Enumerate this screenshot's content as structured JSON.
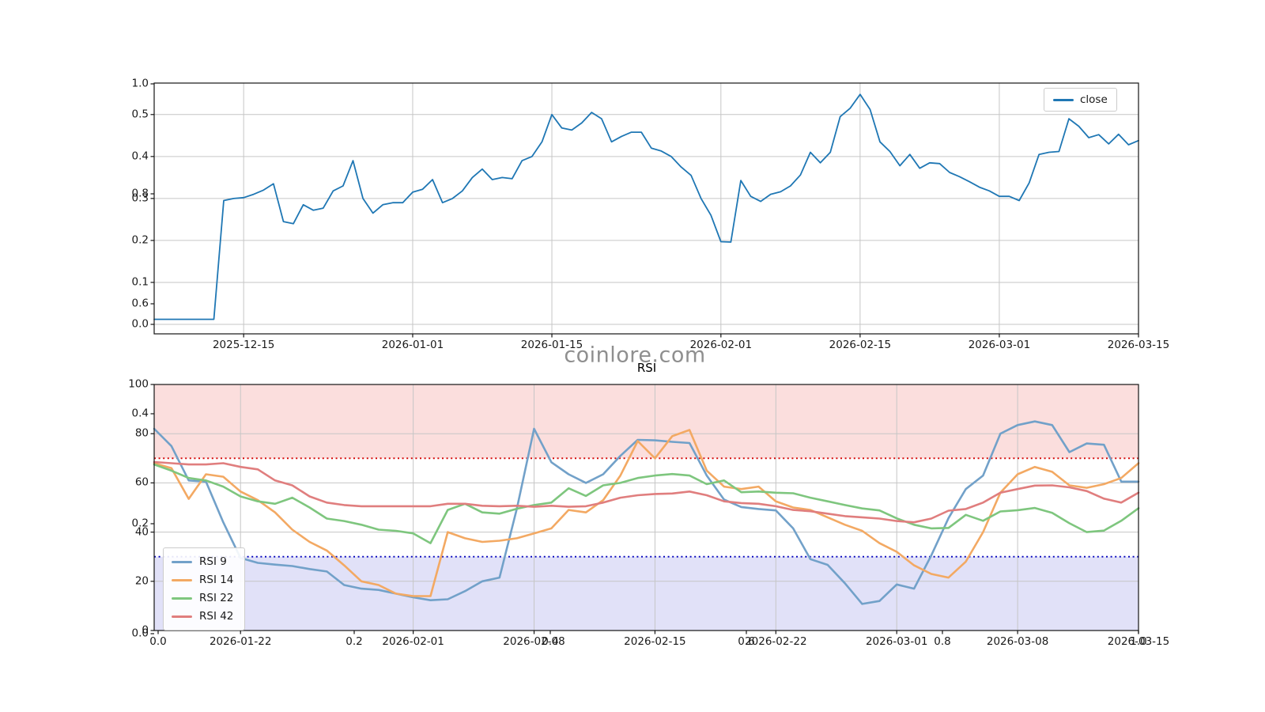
{
  "watermark": "coinlore.com",
  "overlay_axis": {
    "xticks": [
      "0.0",
      "0.2",
      "0.4",
      "0.6",
      "0.8",
      "1.0"
    ],
    "yticks": [
      "1.0",
      "0.8",
      "0.6",
      "0.4",
      "0.2",
      "0.0"
    ]
  },
  "chart_data": [
    {
      "type": "line",
      "title": "",
      "x_start": "2025-12-06",
      "x_end": "2026-03-15",
      "x_freq": "daily",
      "xticks": [
        "2025-12-15",
        "2026-01-01",
        "2026-01-15",
        "2026-02-01",
        "2026-02-15",
        "2026-03-01",
        "2026-03-15"
      ],
      "yticks": [
        "0.0",
        "0.1",
        "0.2",
        "0.3",
        "0.4",
        "0.5"
      ],
      "ylim": [
        -0.0226,
        0.575
      ],
      "grid": true,
      "legend_position": "upper right",
      "series": [
        {
          "name": "close",
          "color": "#1f77b4",
          "values": [
            0.012,
            0.012,
            0.012,
            0.012,
            0.012,
            0.012,
            0.012,
            0.295,
            0.3,
            0.302,
            0.31,
            0.32,
            0.335,
            0.245,
            0.24,
            0.285,
            0.272,
            0.277,
            0.318,
            0.33,
            0.39,
            0.3,
            0.265,
            0.285,
            0.29,
            0.29,
            0.315,
            0.322,
            0.345,
            0.29,
            0.3,
            0.318,
            0.35,
            0.37,
            0.345,
            0.35,
            0.347,
            0.39,
            0.4,
            0.435,
            0.5,
            0.468,
            0.463,
            0.48,
            0.505,
            0.49,
            0.435,
            0.448,
            0.458,
            0.458,
            0.42,
            0.413,
            0.4,
            0.375,
            0.355,
            0.3,
            0.26,
            0.197,
            0.196,
            0.343,
            0.305,
            0.293,
            0.31,
            0.316,
            0.33,
            0.356,
            0.41,
            0.385,
            0.41,
            0.495,
            0.515,
            0.548,
            0.512,
            0.435,
            0.412,
            0.378,
            0.405,
            0.372,
            0.385,
            0.383,
            0.362,
            0.352,
            0.34,
            0.327,
            0.318,
            0.305,
            0.305,
            0.295,
            0.337,
            0.405,
            0.41,
            0.412,
            0.49,
            0.472,
            0.445,
            0.452,
            0.43,
            0.453,
            0.428,
            0.438
          ]
        }
      ]
    },
    {
      "type": "line",
      "title": "RSI",
      "x_start": "2026-01-17",
      "x_end": "2026-03-15",
      "x_freq": "daily",
      "xticks": [
        "2026-01-22",
        "2026-02-01",
        "2026-02-08",
        "2026-02-15",
        "2026-02-22",
        "2026-03-01",
        "2026-03-08",
        "2026-03-15"
      ],
      "yticks": [
        "0",
        "20",
        "40",
        "60",
        "80",
        "100"
      ],
      "ylim": [
        0,
        100
      ],
      "grid": true,
      "legend_position": "lower left",
      "bands": [
        {
          "from": 70,
          "to": 100,
          "color": "#fbdedd",
          "meaning": "overbought"
        },
        {
          "from": 0,
          "to": 30,
          "color": "#e1e1f8",
          "meaning": "oversold"
        }
      ],
      "hlines": [
        {
          "y": 70,
          "color": "#d40000",
          "style": "dotted"
        },
        {
          "y": 30,
          "color": "#0000bb",
          "style": "dotted"
        }
      ],
      "series": [
        {
          "name": "RSI 9",
          "color": "#72a1c9",
          "values": [
            82,
            75,
            61,
            60.5,
            44,
            29.5,
            27.5,
            26.8,
            26.2,
            25,
            24,
            18.5,
            17,
            16.5,
            15,
            13.5,
            12.3,
            12.7,
            16,
            20,
            21.5,
            49.5,
            82,
            68.4,
            63.5,
            60,
            63.5,
            71,
            77.5,
            77.3,
            76.7,
            76.2,
            63,
            53.2,
            50.2,
            49.4,
            48.8,
            41.5,
            29,
            26.7,
            19.2,
            10.8,
            12,
            18.7,
            17,
            30.5,
            45.7,
            57.5,
            63,
            80,
            83.5,
            85,
            83.5,
            72.5,
            76,
            75.5,
            60.5,
            60.5
          ]
        },
        {
          "name": "RSI 14",
          "color": "#f3a963",
          "values": [
            68,
            66,
            53.5,
            63.5,
            62.5,
            56.5,
            53,
            48,
            41,
            36,
            32.5,
            26.5,
            20,
            18.5,
            15,
            14,
            14,
            40,
            37.5,
            36,
            36.5,
            37.5,
            39.5,
            41.5,
            49,
            48,
            53,
            63,
            77,
            70,
            79,
            81.5,
            65,
            58.5,
            57.5,
            58.5,
            52.5,
            50,
            49,
            46,
            43,
            40.5,
            35.5,
            32,
            26.5,
            23,
            21.5,
            28,
            40,
            56,
            63.5,
            66.5,
            64.5,
            59,
            58,
            59.5,
            62,
            68
          ]
        },
        {
          "name": "RSI 22",
          "color": "#7ec67e",
          "values": [
            67.5,
            65,
            62,
            61,
            58.5,
            54.5,
            52.5,
            51.5,
            54,
            50,
            45.5,
            44.5,
            43,
            41,
            40.5,
            39.5,
            35.5,
            49,
            51.5,
            48,
            47.5,
            49.5,
            51,
            52,
            57.8,
            54.7,
            59,
            60,
            62,
            63,
            63.6,
            63,
            59.5,
            61,
            56.2,
            56.5,
            56,
            55.8,
            54,
            52.5,
            51,
            49.6,
            48.8,
            45.6,
            43,
            41.5,
            41.7,
            47,
            44.6,
            48.4,
            48.9,
            49.8,
            47.8,
            43.6,
            40,
            40.6,
            44.6,
            49.7
          ]
        },
        {
          "name": "RSI 42",
          "color": "#e07e7e",
          "values": [
            68.5,
            68,
            67.5,
            67.5,
            68,
            66.5,
            65.5,
            61,
            59,
            54.5,
            52,
            51,
            50.5,
            50.5,
            50.5,
            50.5,
            50.5,
            51.5,
            51.5,
            50.7,
            50.5,
            50.7,
            50.3,
            50.7,
            50.3,
            50.5,
            52,
            54,
            55,
            55.5,
            55.7,
            56.5,
            55,
            52.5,
            51.8,
            51.5,
            50.5,
            49,
            48.5,
            47.5,
            46.5,
            46,
            45.5,
            44.5,
            44,
            45.5,
            48.7,
            49.4,
            52,
            56,
            57.5,
            58.9,
            59,
            58.2,
            56.7,
            53.6,
            52,
            56
          ]
        }
      ]
    }
  ]
}
